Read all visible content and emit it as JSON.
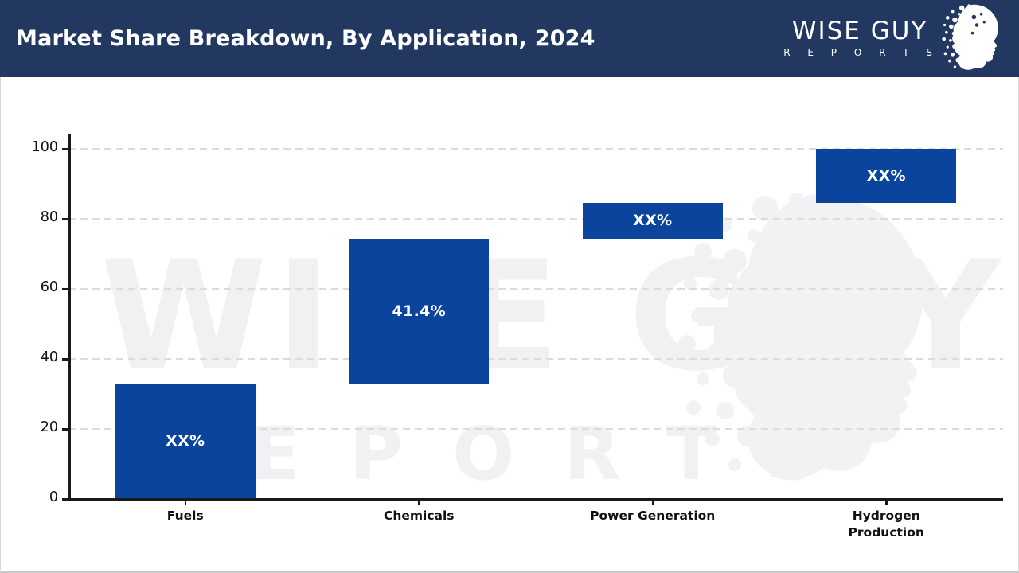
{
  "header": {
    "title": "Market Share Breakdown, By Application, 2024",
    "brand": {
      "name": "WISE GUY",
      "sub": "R E P O R T S"
    },
    "background_color": "#233860"
  },
  "watermark": {
    "line1": "WISE GUY",
    "line2": "REPORTS"
  },
  "chart_data": {
    "type": "bar",
    "subtype": "waterfall",
    "title": "Market Share Breakdown, By Application, 2024",
    "categories": [
      "Fuels",
      "Chemicals",
      "Power Generation",
      "Hydrogen Production"
    ],
    "xtick_display": [
      "Fuels",
      "Chemicals",
      "Power Generation",
      "Hydrogen\nProduction"
    ],
    "segments": [
      {
        "category": "Fuels",
        "start": 0,
        "end": 33,
        "label": "XX%"
      },
      {
        "category": "Chemicals",
        "start": 33,
        "end": 74.4,
        "label": "41.4%"
      },
      {
        "category": "Power Generation",
        "start": 74.4,
        "end": 84.5,
        "label": "XX%"
      },
      {
        "category": "Hydrogen Production",
        "start": 84.5,
        "end": 100,
        "label": "XX%"
      }
    ],
    "ylim": [
      0,
      100
    ],
    "yticks": [
      0,
      20,
      40,
      60,
      80,
      100
    ],
    "xlabel": "",
    "ylabel": "",
    "grid": "horizontal-dashed",
    "legend": "none",
    "bar_color": "#0a449c",
    "bar_label_color": "#ffffff",
    "axis_color": "#1a1a1a"
  }
}
